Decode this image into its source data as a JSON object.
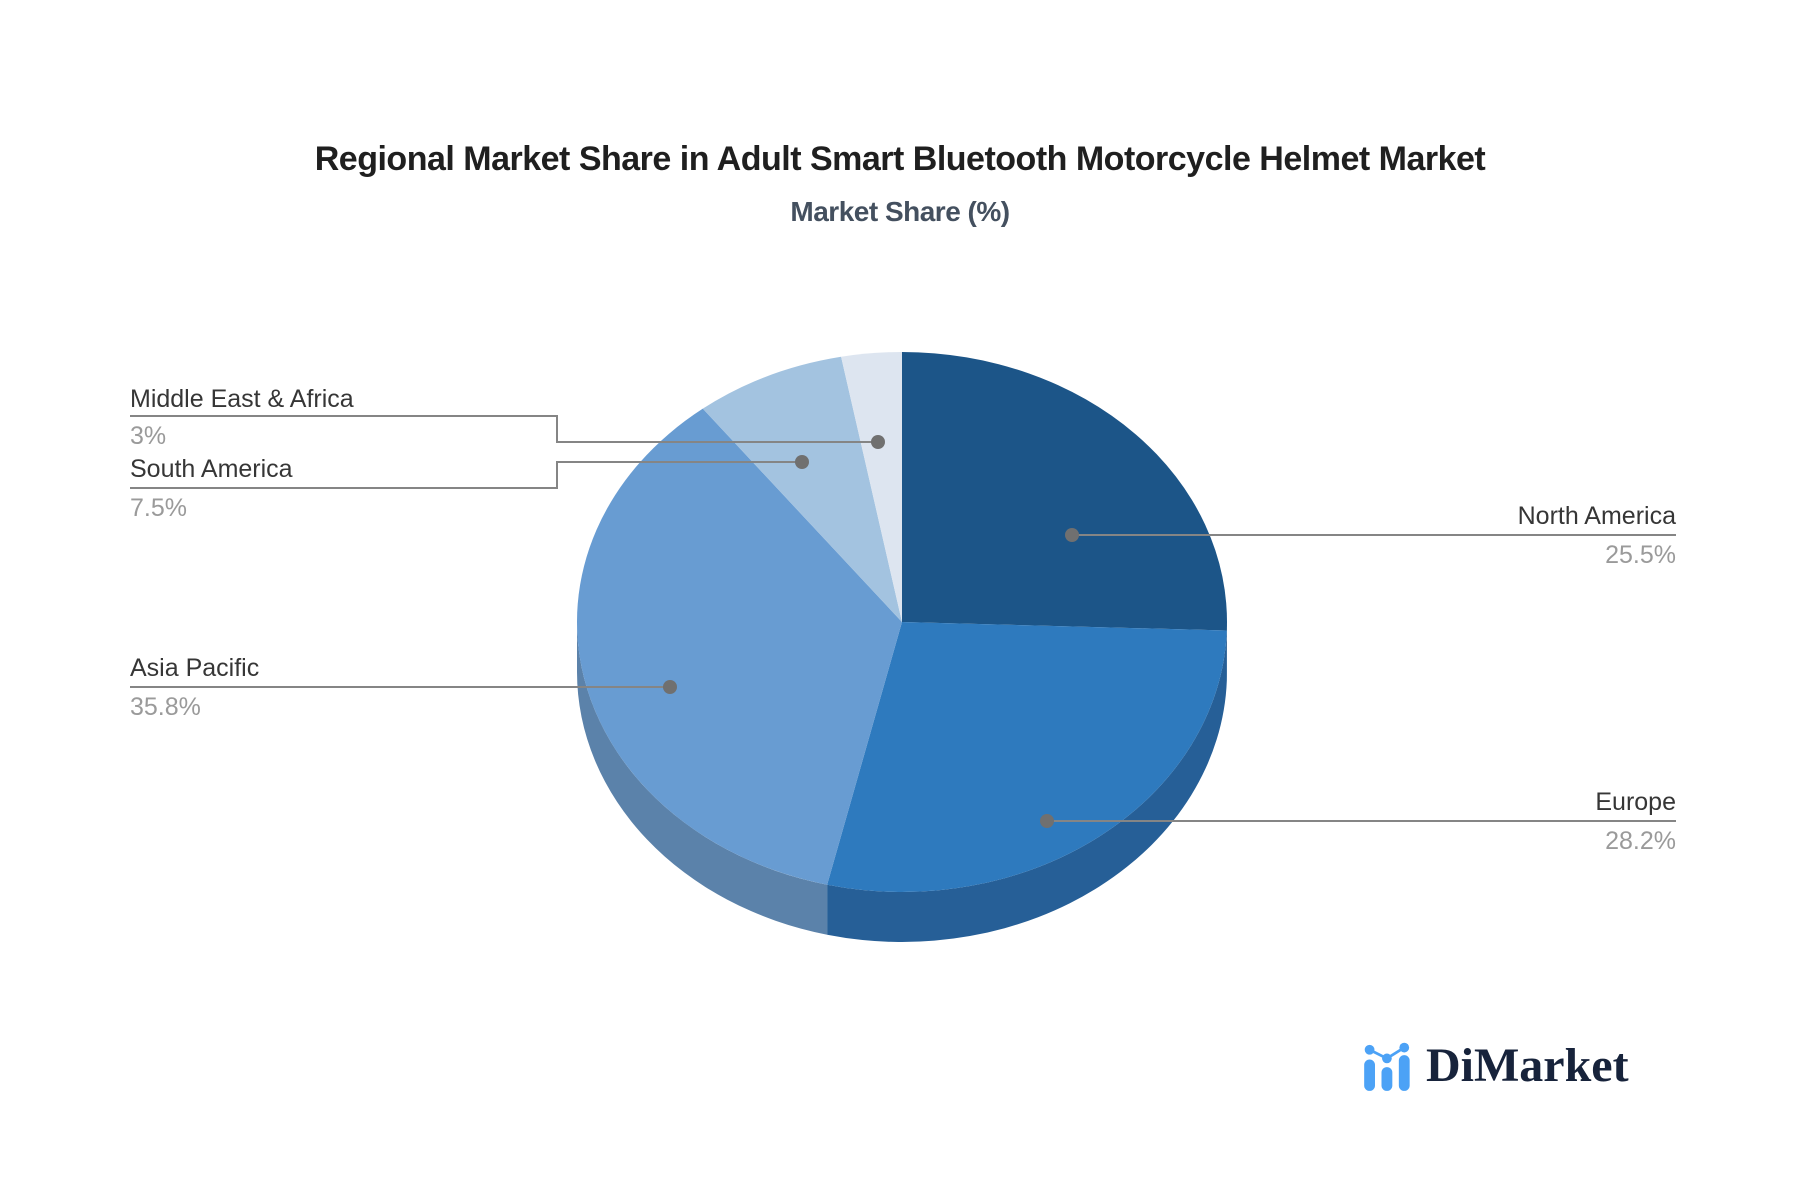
{
  "title": "Regional Market Share in Adult Smart Bluetooth Motorcycle Helmet Market",
  "subtitle": "Market Share (%)",
  "brand": "DiMarket",
  "colors": {
    "title": "#1f1f1f",
    "subtitle": "#44505f",
    "label_name": "#363636",
    "label_percent": "#9a9a9a",
    "leader_line": "#858585",
    "leader_dot": "#707070",
    "logo_text": "#17233b",
    "logo_icon": "#4ca2f6",
    "background": "#ffffff"
  },
  "chart_data": {
    "type": "pie",
    "title": "Regional Market Share in Adult Smart Bluetooth Motorcycle Helmet Market",
    "subtitle": "Market Share (%)",
    "unit": "%",
    "style": "3d-pie",
    "start_angle_deg": 0,
    "clockwise": true,
    "legend_position": "none",
    "slices": [
      {
        "label": "North America",
        "value": 25.5,
        "display": "25.5%",
        "color": "#1c5588",
        "side_color": "#174667"
      },
      {
        "label": "Europe",
        "value": 28.2,
        "display": "28.2%",
        "color": "#2e7abe",
        "side_color": "#265f97"
      },
      {
        "label": "Asia Pacific",
        "value": 35.8,
        "display": "35.8%",
        "color": "#689cd2",
        "side_color": "#5b82aa"
      },
      {
        "label": "South America",
        "value": 7.5,
        "display": "7.5%",
        "color": "#a3c3e0",
        "side_color": "#8aa7c2"
      },
      {
        "label": "Middle East & Africa",
        "value": 3,
        "display": "3%",
        "color": "#dde5f0",
        "side_color": "#bcc8d7"
      }
    ]
  }
}
